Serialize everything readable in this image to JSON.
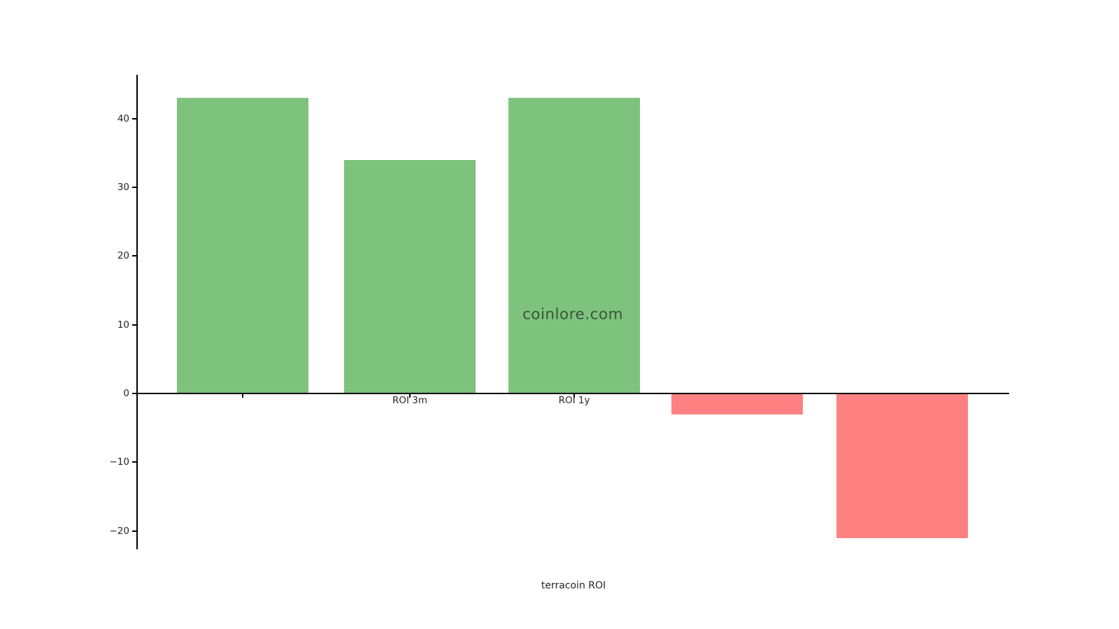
{
  "chart_data": {
    "type": "bar",
    "title": "",
    "xlabel": "terracoin ROI",
    "ylabel": "",
    "watermark": "coinlore.com",
    "categories": [
      "",
      "ROI 3m",
      "ROI 1y",
      "",
      ""
    ],
    "values": [
      43,
      34,
      43,
      -3,
      -21
    ],
    "yticks": [
      {
        "value": 40,
        "label": "40"
      },
      {
        "value": 30,
        "label": "30"
      },
      {
        "value": 20,
        "label": "20"
      },
      {
        "value": 10,
        "label": "10"
      },
      {
        "value": 0,
        "label": "0"
      },
      {
        "value": -10,
        "label": "−10"
      },
      {
        "value": -20,
        "label": "−20"
      }
    ],
    "xticks": [
      {
        "index": 0,
        "label": ""
      },
      {
        "index": 1,
        "label": "ROI 3m"
      },
      {
        "index": 2,
        "label": "ROI 1y"
      }
    ],
    "ylim": [
      -22.6,
      46.4
    ],
    "grid": false,
    "legend": null,
    "colors": {
      "positive": "#7dc27d",
      "negative": "#ff8080",
      "axis": "#000000",
      "text": "#262626"
    }
  }
}
